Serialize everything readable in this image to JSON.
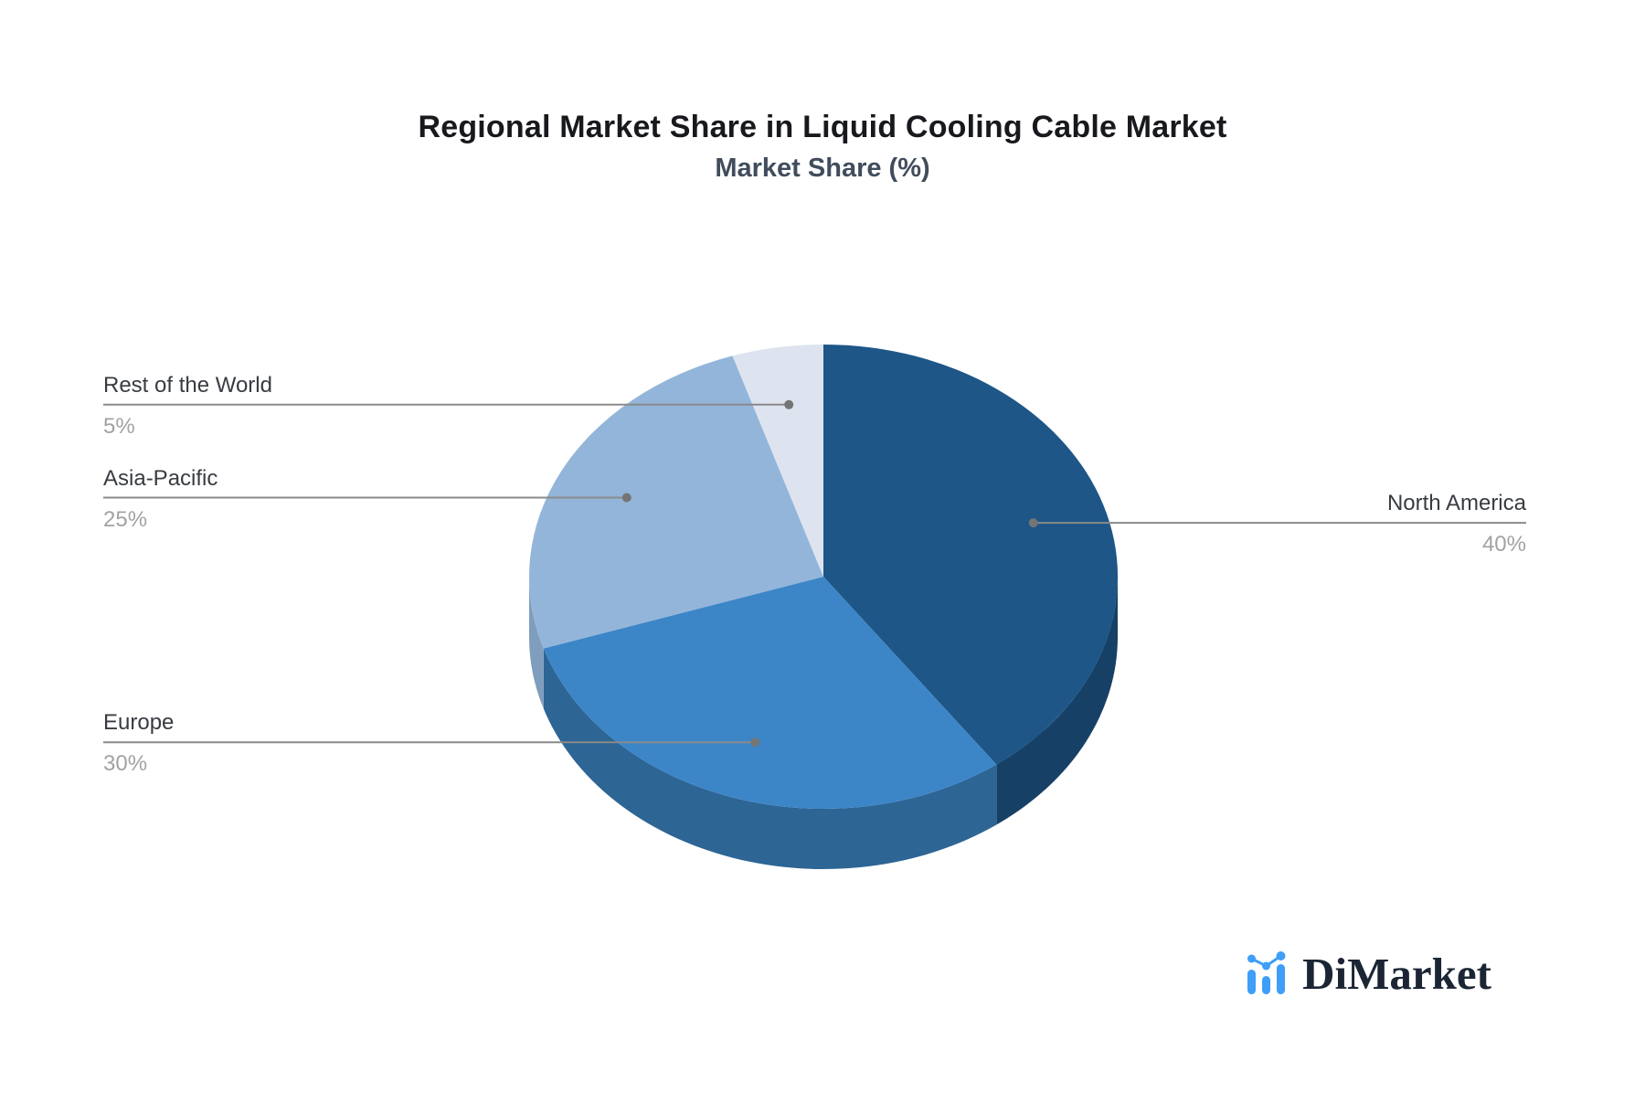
{
  "header": {
    "title": "Regional Market Share in Liquid Cooling Cable Market",
    "subtitle": "Market Share (%)"
  },
  "chart_data": {
    "type": "pie",
    "style": "3d",
    "title": "Regional Market Share in Liquid Cooling Cable Market",
    "subtitle": "Market Share (%)",
    "unit": "%",
    "start_angle_deg": 90,
    "direction": "clockwise",
    "legend_position": "none",
    "categories": [
      "North America",
      "Europe",
      "Asia-Pacific",
      "Rest of the World"
    ],
    "values": [
      40,
      30,
      25,
      5
    ],
    "value_labels": [
      "40%",
      "30%",
      "25%",
      "5%"
    ],
    "label_sides": [
      "right",
      "left",
      "left",
      "left"
    ],
    "colors": [
      "#1d5687",
      "#3c86c8",
      "#93b5d9",
      "#dde3ef"
    ],
    "side_colors": [
      "#174066",
      "#2d6595",
      "#7f9dbd",
      "#b9c6da"
    ]
  },
  "leader": {
    "line_color": "#8a8a8a",
    "dot_color": "#757575",
    "name_color": "#383c42",
    "pct_color": "#a2a2a2"
  },
  "branding": {
    "logo_text": "DiMarket",
    "logo_text_color": "#1b2534",
    "icon_color": "#3f9ef7",
    "icon_name": "bar-line-chart-icon"
  }
}
